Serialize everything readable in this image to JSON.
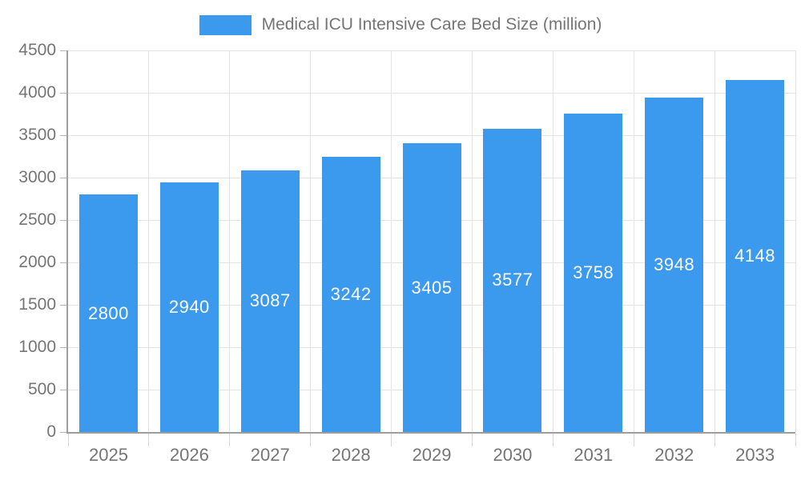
{
  "legend": {
    "label": "Medical ICU Intensive Care Bed Size (million)"
  },
  "colors": {
    "bar": "#3B99EE",
    "bar_label": "#FFFFFF",
    "grid": "#E4E4E4",
    "axis": "#9E9E9E",
    "y_tick_mark": "#B5B5B5",
    "x_tick_mark": "#D7D7D7",
    "tick_text": "#757575",
    "background": "#FFFFFF"
  },
  "chart_data": {
    "type": "bar",
    "title": "Medical ICU Intensive Care Bed Size (million)",
    "series": [
      {
        "name": "Medical ICU Intensive Care Bed Size (million)",
        "values": [
          2800,
          2940,
          3087,
          3242,
          3405,
          3577,
          3758,
          3948,
          4148
        ]
      }
    ],
    "categories": [
      "2025",
      "2026",
      "2027",
      "2028",
      "2029",
      "2030",
      "2031",
      "2032",
      "2033"
    ],
    "xlabel": "",
    "ylabel": "",
    "ylim": [
      0,
      4500
    ],
    "ytick_step": 500,
    "yticks": [
      0,
      500,
      1000,
      1500,
      2000,
      2500,
      3000,
      3500,
      4000,
      4500
    ],
    "grid": true,
    "legend_position": "top-center",
    "value_labels": "inside-center-white"
  }
}
